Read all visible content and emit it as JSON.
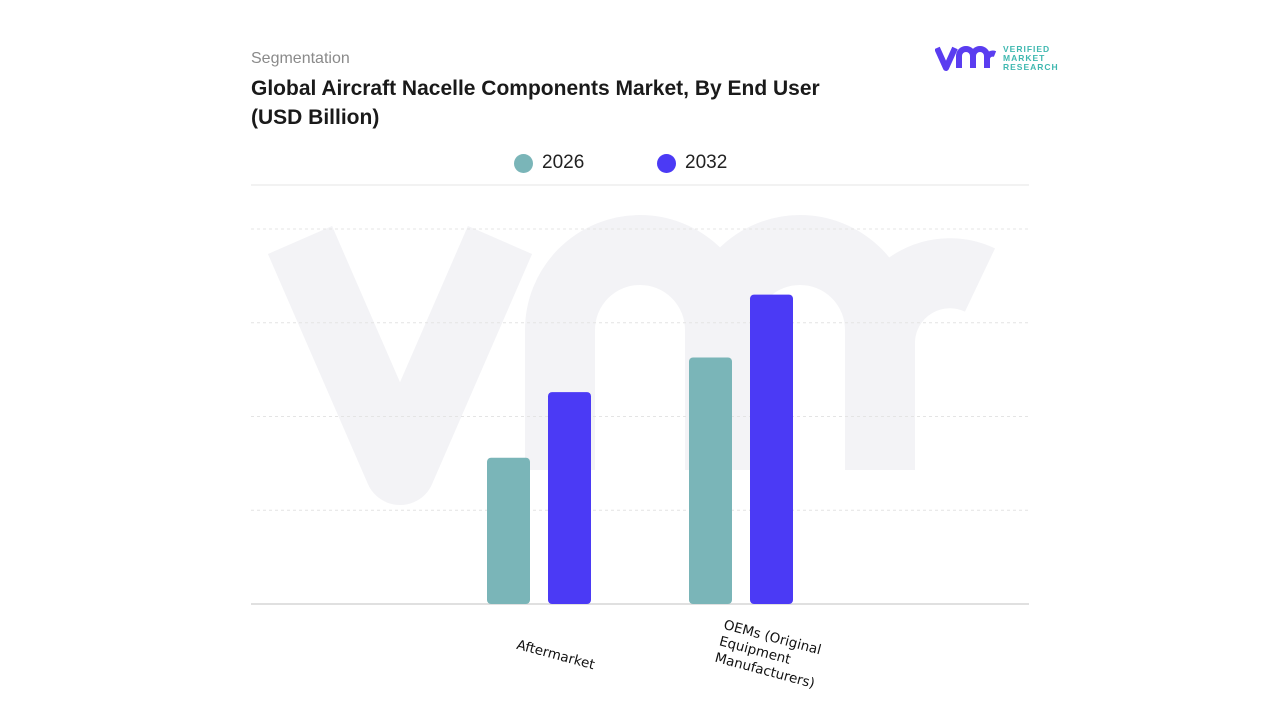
{
  "header": {
    "segment_label": "Segmentation",
    "title": "Global Aircraft Nacelle Components Market, By End User (USD Billion)"
  },
  "logo": {
    "lines": [
      "VERIFIED",
      "MARKET",
      "RESEARCH"
    ],
    "mark": "vmr"
  },
  "chart_data": {
    "type": "bar",
    "title": "Global Aircraft Nacelle Components Market, By End User (USD Billion)",
    "categories": [
      "Aftermarket",
      "OEMs (Original Equipment Manufacturers)"
    ],
    "series": [
      {
        "name": "2026",
        "color": "#7ab5b8",
        "values": [
          1.56,
          2.63
        ]
      },
      {
        "name": "2032",
        "color": "#4b3af5",
        "values": [
          2.26,
          3.3
        ]
      }
    ],
    "ylim": [
      0,
      4
    ],
    "grid": true,
    "legend": "top-center",
    "xlabel": "",
    "ylabel": ""
  }
}
